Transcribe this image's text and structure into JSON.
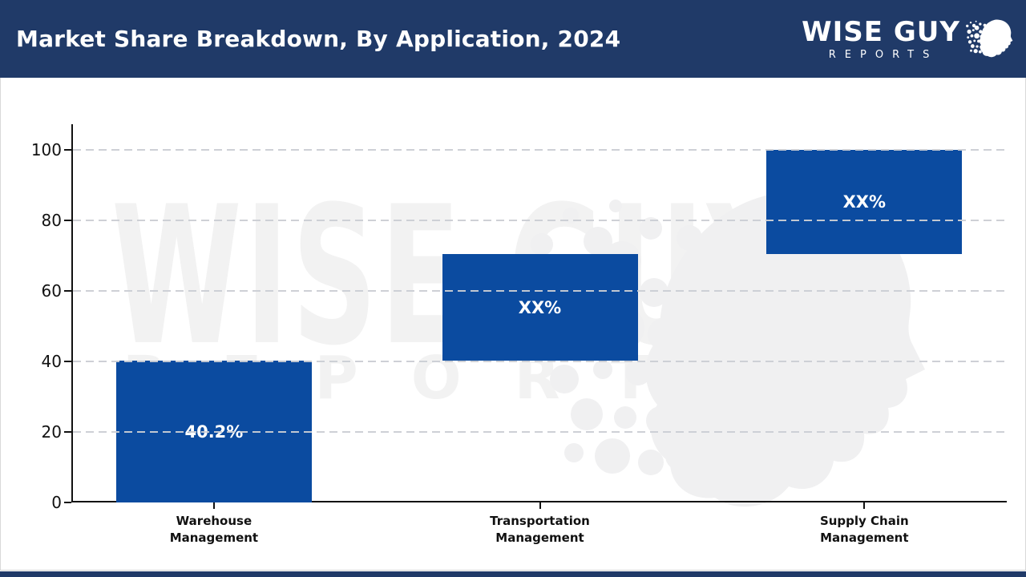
{
  "header": {
    "title": "Market Share Breakdown, By Application, 2024",
    "logo": {
      "line1": "WISE GUY",
      "line2": "REPORTS"
    }
  },
  "watermark": {
    "line1": "WISE GUY",
    "line2": "REPORTS"
  },
  "chart_data": {
    "type": "bar",
    "subtype": "floating segmented bars (cumulative market-share breakdown, waterfall style)",
    "title": "Market Share Breakdown, By Application, 2024",
    "categories": [
      {
        "line1": "Warehouse",
        "line2": "Management"
      },
      {
        "line1": "Transportation",
        "line2": "Management"
      },
      {
        "line1": "Supply Chain",
        "line2": "Management"
      }
    ],
    "segments": [
      {
        "category": "Warehouse Management",
        "from": 0,
        "to": 40.2,
        "label": "40.2%"
      },
      {
        "category": "Transportation Management",
        "from": 40.2,
        "to": 70.4,
        "label": "XX%"
      },
      {
        "category": "Supply Chain Management",
        "from": 70.4,
        "to": 100,
        "label": "XX%"
      }
    ],
    "ylim": [
      0,
      100
    ],
    "yticks": [
      0,
      20,
      40,
      60,
      80,
      100
    ],
    "xlabel": "",
    "ylabel": "",
    "grid": "horizontal dashed gridlines drawn over bars",
    "legend": "none",
    "bar_color": "#0b4ba0",
    "header_color": "#203a68",
    "watermark_color": "#f2f2f2"
  }
}
